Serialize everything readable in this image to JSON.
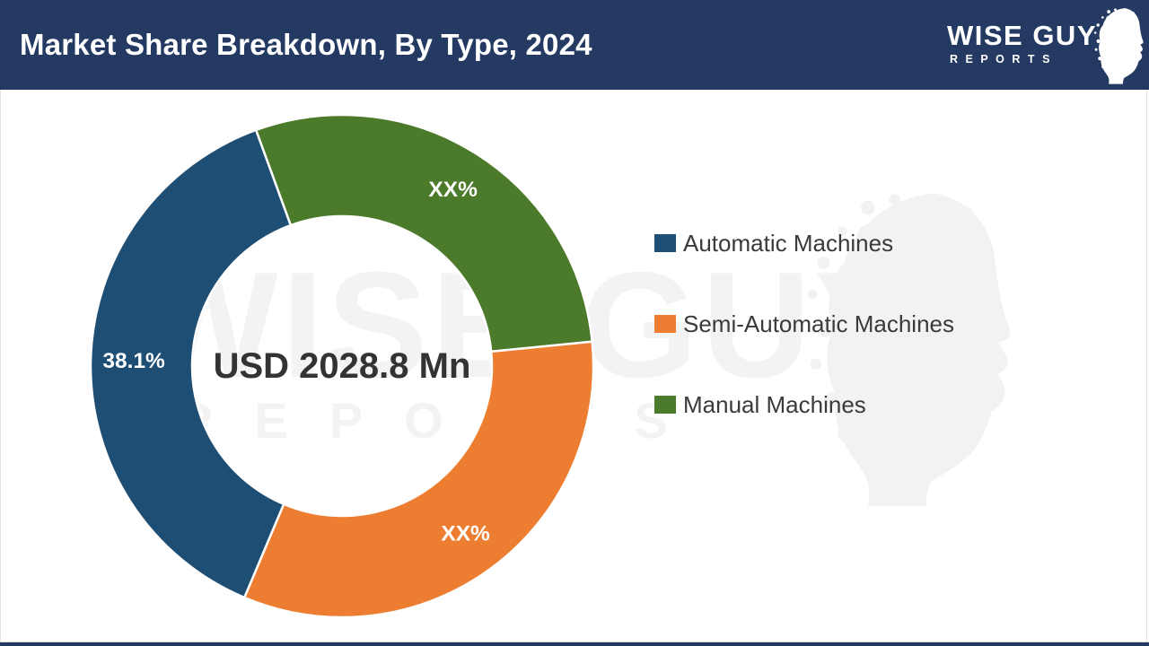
{
  "header": {
    "title": "Market Share Breakdown, By Type, 2024",
    "bg_color": "#243a63",
    "logo": {
      "line1": "WISE GUY",
      "line2": "REPORTS"
    }
  },
  "watermark": {
    "line1": "WISE GUY",
    "line2": "REPORTS",
    "color": "#f3f3f3"
  },
  "chart_data": {
    "type": "pie",
    "donut": true,
    "title": "Market Share Breakdown, By Type, 2024",
    "center_label": "USD 2028.8 Mn",
    "start_angle_deg": -20,
    "legend_position": "right",
    "segments": [
      {
        "label": "Manual Machines",
        "display_value": "XX%",
        "percent": 29.0,
        "color": "#4c7a2b"
      },
      {
        "label": "Semi-Automatic Machines",
        "display_value": "XX%",
        "percent": 32.9,
        "color": "#ed7d31"
      },
      {
        "label": "Automatic Machines",
        "display_value": "38.1%",
        "percent": 38.1,
        "color": "#1f4e74"
      }
    ],
    "legend": [
      {
        "label": "Automatic Machines",
        "color": "#1f4e74"
      },
      {
        "label": "Semi-Automatic Machines",
        "color": "#ed7d31"
      },
      {
        "label": "Manual Machines",
        "color": "#4c7a2b"
      }
    ]
  }
}
